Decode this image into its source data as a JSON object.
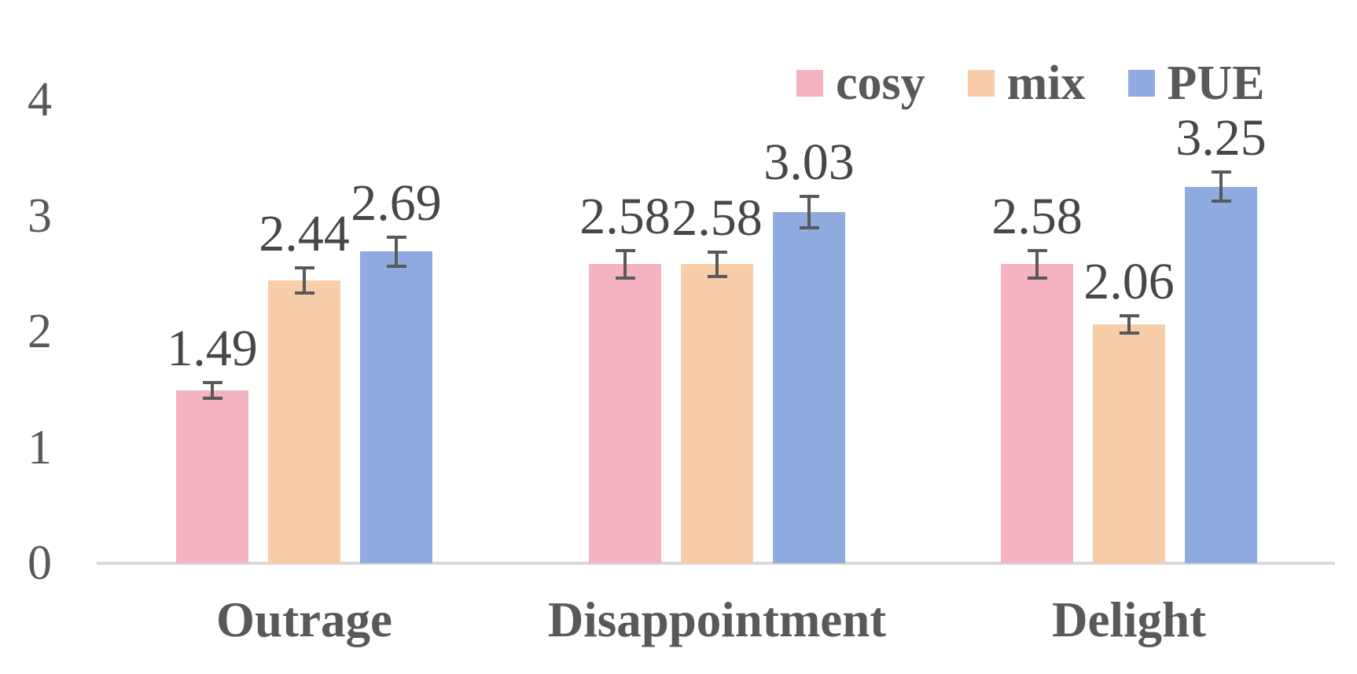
{
  "chart_data": {
    "type": "bar",
    "title": "",
    "categories": [
      "Outrage",
      "Disappointment",
      "Delight"
    ],
    "series": [
      {
        "name": "cosy",
        "color": "#F4B3C0",
        "values": [
          1.49,
          2.58,
          2.58
        ],
        "errors": [
          0.08,
          0.13,
          0.13
        ]
      },
      {
        "name": "mix",
        "color": "#F8CDAA",
        "values": [
          2.44,
          2.58,
          2.06
        ],
        "errors": [
          0.12,
          0.12,
          0.09
        ]
      },
      {
        "name": "PUE",
        "color": "#90ABDF",
        "values": [
          2.69,
          3.03,
          3.25
        ],
        "errors": [
          0.14,
          0.15,
          0.14
        ]
      }
    ],
    "ylim": [
      0,
      4
    ],
    "yticks": [
      0,
      1,
      2,
      3,
      4
    ],
    "grid": false,
    "legend_position": "top-right",
    "value_labels": true,
    "error_bars": true,
    "colors": {
      "axis_line": "#D9D9D9",
      "axis_text": "#595959",
      "category_text": "#595959",
      "legend_text": "#595959",
      "value_text": "#474747",
      "error_bar": "#595959",
      "background": "#FFFFFF"
    }
  }
}
